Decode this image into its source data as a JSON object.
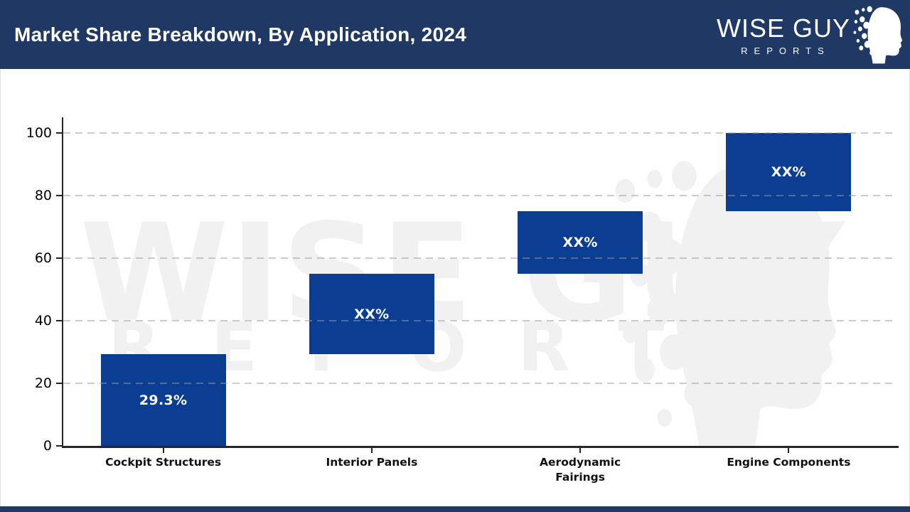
{
  "header": {
    "title": "Market Share Breakdown, By Application, 2024",
    "logo": {
      "wordmark": "WISE GUY",
      "subtext": "REPORTS"
    }
  },
  "watermark": {
    "line1": "WISE GUY",
    "line2": "REPORTS"
  },
  "colors": {
    "header_bg": "#1F3864",
    "footer_bg": "#1F3864",
    "bar": "#0B3D92",
    "axis": "#262626",
    "grid": "#9a9a9a",
    "bar_label": "#ffffff",
    "watermark": "#f1f1f1",
    "background": "#ffffff"
  },
  "chart_data": {
    "type": "bar",
    "subtype": "waterfall",
    "title": "Market Share Breakdown, By Application, 2024",
    "categories": [
      "Cockpit Structures",
      "Interior Panels",
      "Aerodynamic\nFairings",
      "Engine Components"
    ],
    "segments": [
      {
        "category": "Cockpit Structures",
        "start": 0,
        "end": 29.3,
        "label": "29.3%"
      },
      {
        "category": "Interior Panels",
        "start": 29.3,
        "end": 55,
        "label": "XX%"
      },
      {
        "category": "Aerodynamic Fairings",
        "start": 55,
        "end": 75,
        "label": "XX%"
      },
      {
        "category": "Engine Components",
        "start": 75,
        "end": 100,
        "label": "XX%"
      }
    ],
    "yticks": [
      0,
      20,
      40,
      60,
      80,
      100
    ],
    "ylim": [
      0,
      105
    ],
    "xlabel": "",
    "ylabel": "",
    "grid": "dashed-horizontal",
    "legend": "none"
  }
}
